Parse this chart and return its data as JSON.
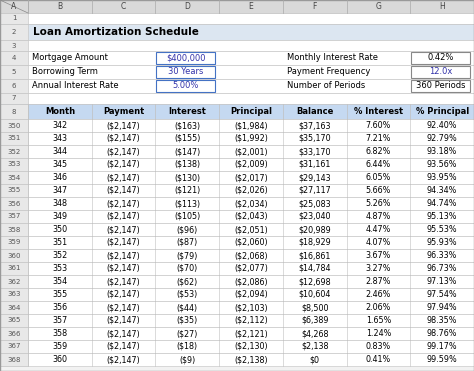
{
  "title": "Loan Amortization Schedule",
  "header_info_left": [
    [
      "Mortgage Amount",
      "$400,000"
    ],
    [
      "Borrowing Term",
      "30 Years"
    ],
    [
      "Annual Interest Rate",
      "5.00%"
    ]
  ],
  "header_info_right": [
    [
      "Monthly Interest Rate",
      "0.42%"
    ],
    [
      "Payment Frequency",
      "12.0x"
    ],
    [
      "Number of Periods",
      "360 Periods"
    ]
  ],
  "col_headers": [
    "Month",
    "Payment",
    "Interest",
    "Principal",
    "Balance",
    "% Interest",
    "% Principal"
  ],
  "row_numbers": [
    350,
    351,
    352,
    353,
    354,
    355,
    356,
    357,
    358,
    359,
    360,
    361,
    362,
    363,
    364,
    365,
    366,
    367,
    368
  ],
  "table_data": [
    [
      "342",
      "($2,147)",
      "($163)",
      "($1,984)",
      "$37,163",
      "7.60%",
      "92.40%"
    ],
    [
      "343",
      "($2,147)",
      "($155)",
      "($1,992)",
      "$35,170",
      "7.21%",
      "92.79%"
    ],
    [
      "344",
      "($2,147)",
      "($147)",
      "($2,001)",
      "$33,170",
      "6.82%",
      "93.18%"
    ],
    [
      "345",
      "($2,147)",
      "($138)",
      "($2,009)",
      "$31,161",
      "6.44%",
      "93.56%"
    ],
    [
      "346",
      "($2,147)",
      "($130)",
      "($2,017)",
      "$29,143",
      "6.05%",
      "93.95%"
    ],
    [
      "347",
      "($2,147)",
      "($121)",
      "($2,026)",
      "$27,117",
      "5.66%",
      "94.34%"
    ],
    [
      "348",
      "($2,147)",
      "($113)",
      "($2,034)",
      "$25,083",
      "5.26%",
      "94.74%"
    ],
    [
      "349",
      "($2,147)",
      "($105)",
      "($2,043)",
      "$23,040",
      "4.87%",
      "95.13%"
    ],
    [
      "350",
      "($2,147)",
      "($96)",
      "($2,051)",
      "$20,989",
      "4.47%",
      "95.53%"
    ],
    [
      "351",
      "($2,147)",
      "($87)",
      "($2,060)",
      "$18,929",
      "4.07%",
      "95.93%"
    ],
    [
      "352",
      "($2,147)",
      "($79)",
      "($2,068)",
      "$16,861",
      "3.67%",
      "96.33%"
    ],
    [
      "353",
      "($2,147)",
      "($70)",
      "($2,077)",
      "$14,784",
      "3.27%",
      "96.73%"
    ],
    [
      "354",
      "($2,147)",
      "($62)",
      "($2,086)",
      "$12,698",
      "2.87%",
      "97.13%"
    ],
    [
      "355",
      "($2,147)",
      "($53)",
      "($2,094)",
      "$10,604",
      "2.46%",
      "97.54%"
    ],
    [
      "356",
      "($2,147)",
      "($44)",
      "($2,103)",
      "$8,500",
      "2.06%",
      "97.94%"
    ],
    [
      "357",
      "($2,147)",
      "($35)",
      "($2,112)",
      "$6,389",
      "1.65%",
      "98.35%"
    ],
    [
      "358",
      "($2,147)",
      "($27)",
      "($2,121)",
      "$4,268",
      "1.24%",
      "98.76%"
    ],
    [
      "359",
      "($2,147)",
      "($18)",
      "($2,130)",
      "$2,138",
      "0.83%",
      "99.17%"
    ],
    [
      "360",
      "($2,147)",
      "($9)",
      "($2,138)",
      "$0",
      "0.41%",
      "99.59%"
    ]
  ],
  "bg_color": "#f2f2f2",
  "col_header_bg": "#dce6f1",
  "col_header_bg2": "#c5d9f1",
  "row_num_bg": "#e8e8e8",
  "cell_bg": "#ffffff",
  "title_row_bg": "#dce6f1",
  "blank_row_bg": "#ffffff",
  "letter_header_bg": "#d9d9d9",
  "grid_color": "#c0c0c0",
  "blue_text": "#3333aa",
  "blue_border": "#4472C4",
  "red_text": "#aa0000"
}
